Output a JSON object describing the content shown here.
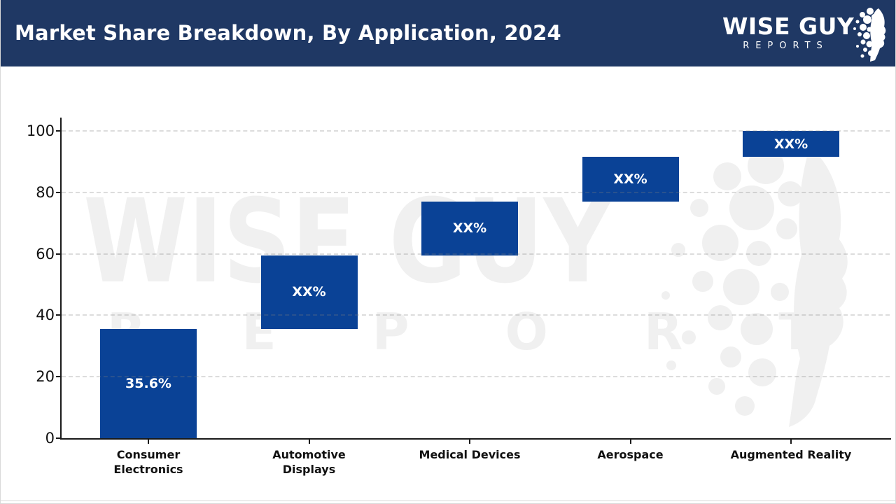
{
  "header": {
    "title": "Market Share Breakdown, By Application, 2024",
    "background_color": "#1f3864",
    "text_color": "#ffffff",
    "logo": {
      "wordmark": "WISE GUY",
      "subtext": "REPORTS",
      "icon": "dotted-head-profile"
    }
  },
  "watermark": {
    "wordmark": "WISE GUY",
    "subtext": "R E P O R T S",
    "icon": "dotted-head-profile",
    "color": "#f0f0f0"
  },
  "chart_data": {
    "type": "bar",
    "subtype": "floating-waterfall",
    "title": "Market Share Breakdown, By Application, 2024",
    "xlabel": "",
    "ylabel": "",
    "ylim": [
      0,
      105
    ],
    "yticks": [
      0,
      20,
      40,
      60,
      80,
      100
    ],
    "grid": "horizontal-dashed",
    "legend": "none",
    "bar_color": "#0a4296",
    "bar_label_color": "#ffffff",
    "categories": [
      "Consumer Electronics",
      "Automotive Displays",
      "Medical Devices",
      "Aerospace",
      "Augmented Reality"
    ],
    "x_tick_labels": [
      "Consumer\nElectronics",
      "Automotive\nDisplays",
      "Medical Devices",
      "Aerospace",
      "Augmented Reality"
    ],
    "segments": [
      {
        "category": "Consumer Electronics",
        "start": 0,
        "end": 35.6,
        "label": "35.6%"
      },
      {
        "category": "Automotive Displays",
        "start": 35.6,
        "end": 59.5,
        "label": "XX%"
      },
      {
        "category": "Medical Devices",
        "start": 59.5,
        "end": 77.0,
        "label": "XX%"
      },
      {
        "category": "Aerospace",
        "start": 77.0,
        "end": 91.5,
        "label": "XX%"
      },
      {
        "category": "Augmented Reality",
        "start": 91.5,
        "end": 100.0,
        "label": "XX%"
      }
    ]
  }
}
